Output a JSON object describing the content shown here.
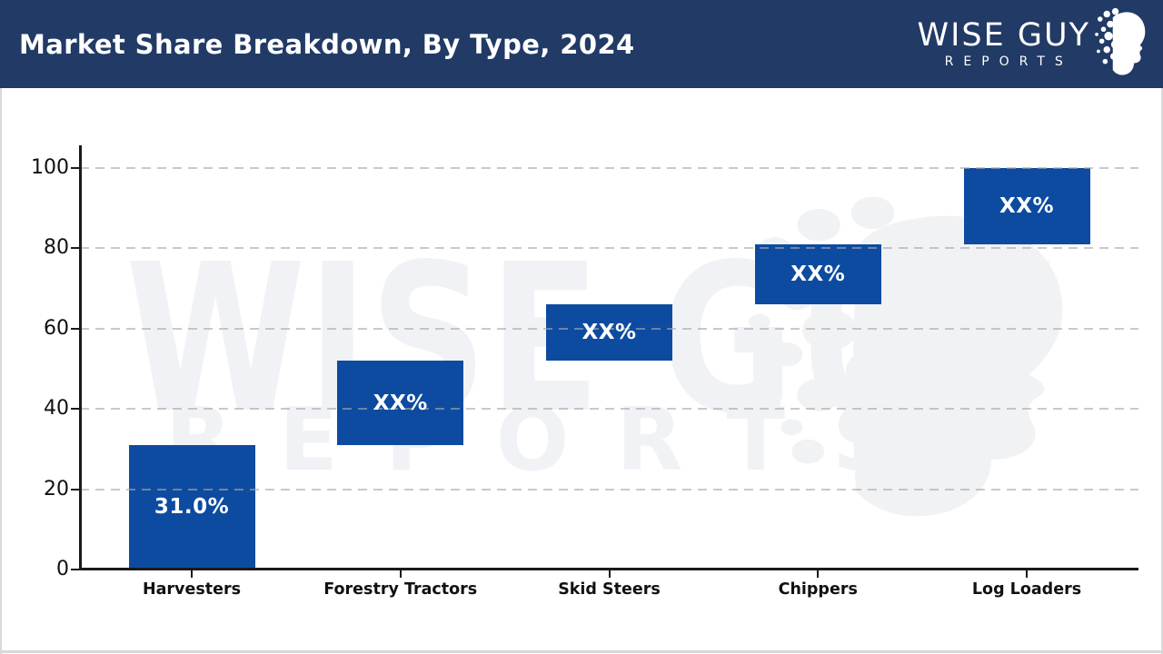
{
  "header": {
    "title": "Market Share Breakdown, By Type, 2024",
    "background_color": "#213a66",
    "logo": {
      "line1": "WISE GUY",
      "line2": "REPORTS"
    }
  },
  "watermark": {
    "line1": "WISE GUY",
    "line2": "REPORTS"
  },
  "chart_data": {
    "type": "bar",
    "variant": "waterfall",
    "title": "Market Share Breakdown, By Type, 2024",
    "categories": [
      "Harvesters",
      "Forestry Tractors",
      "Skid Steers",
      "Chippers",
      "Log Loaders"
    ],
    "series": [
      {
        "name": "Market share (%)",
        "starts": [
          0,
          31,
          52,
          66,
          81
        ],
        "ends": [
          31,
          52,
          66,
          81,
          100
        ],
        "increments": [
          31,
          21,
          14,
          15,
          19
        ],
        "labels": [
          "31.0%",
          "XX%",
          "XX%",
          "XX%",
          "XX%"
        ]
      }
    ],
    "xlabel": "",
    "ylabel": "",
    "ylim": [
      0,
      105
    ],
    "yticks": [
      0,
      20,
      40,
      60,
      80,
      100
    ],
    "grid": {
      "axis": "y",
      "style": "dashed",
      "on": true
    },
    "legend": null,
    "bar_color": "#0d4ba1",
    "bar_label_color": "#ffffff",
    "axis_color": "#1a1a1a"
  }
}
